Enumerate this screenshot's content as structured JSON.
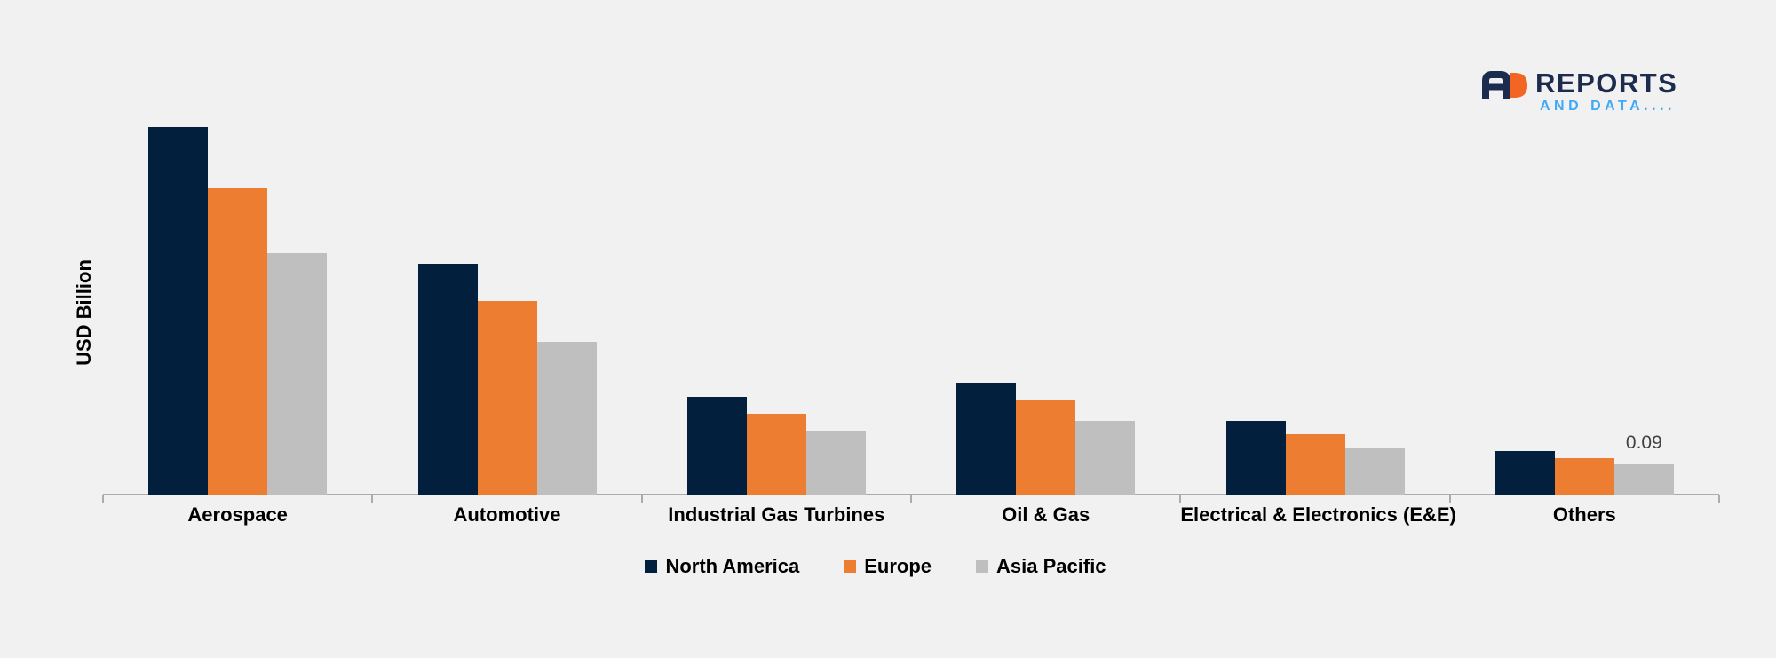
{
  "page": {
    "background_color": "#f1f1f1"
  },
  "logo": {
    "mark_icon": "rd-monogram",
    "brand_line1": "REPORTS",
    "brand_line2": "AND DATA....",
    "navy": "#1b2c4f",
    "light_blue": "#3fa9f5",
    "orange": "#f26522"
  },
  "chart_data": {
    "type": "bar",
    "title": "",
    "xlabel": "",
    "ylabel": "USD Billion",
    "categories": [
      "Aerospace",
      "Automotive",
      "Industrial Gas Turbines",
      "Oil & Gas",
      "Electrical & Electronics (E&E)",
      "Others"
    ],
    "series": [
      {
        "name": "North America",
        "color": "#02203e",
        "values": [
          1.08,
          0.68,
          0.29,
          0.33,
          0.22,
          0.13
        ]
      },
      {
        "name": "Europe",
        "color": "#ed7d31",
        "values": [
          0.9,
          0.57,
          0.24,
          0.28,
          0.18,
          0.11
        ]
      },
      {
        "name": "Asia Pacific",
        "color": "#bfbfbf",
        "values": [
          0.71,
          0.45,
          0.19,
          0.22,
          0.14,
          0.09
        ]
      }
    ],
    "data_labels": [
      {
        "category": "Others",
        "series": "Asia Pacific",
        "text": "0.09"
      }
    ],
    "ylim": [
      0,
      1.2
    ],
    "grid": false,
    "y_tick_labels_visible": false,
    "legend_position": "bottom",
    "axis_color": "#ababab",
    "category_label_color": "#000000",
    "data_label_color": "#404040"
  }
}
